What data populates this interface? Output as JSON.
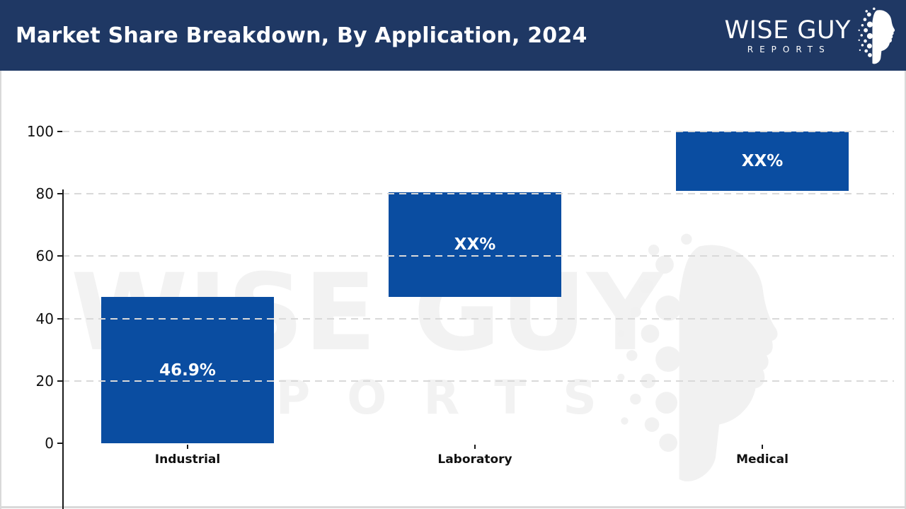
{
  "header": {
    "title": "Market Share Breakdown, By Application, 2024",
    "logo": {
      "line1": "WISE GUY",
      "line2": "REPORTS"
    }
  },
  "watermark": {
    "line1": "WISE GUY",
    "line2": "REPORTS"
  },
  "colors": {
    "header_bg": "#1f3864",
    "bar": "#0a4da1",
    "grid": "#d9d9d9",
    "axis": "#1a1a1a",
    "bar_label_text": "#ffffff",
    "watermark": "#f2f2f2"
  },
  "chart_data": {
    "type": "bar",
    "subtype": "waterfall",
    "title": "Market Share Breakdown, By Application, 2024",
    "categories": [
      "Industrial",
      "Laboratory",
      "Medical"
    ],
    "segments": [
      {
        "category": "Industrial",
        "from": 0,
        "to": 46.9,
        "label": "46.9%"
      },
      {
        "category": "Laboratory",
        "from": 46.9,
        "to": 80.4,
        "label": "XX%"
      },
      {
        "category": "Medical",
        "from": 81.0,
        "to": 100,
        "label": "XX%"
      }
    ],
    "ylim": [
      0,
      100
    ],
    "yticks": [
      0,
      20,
      40,
      60,
      80,
      100
    ],
    "xlabel": "",
    "ylabel": "",
    "grid": "dashed-horizontal, drawn above bars",
    "legend": "none"
  }
}
